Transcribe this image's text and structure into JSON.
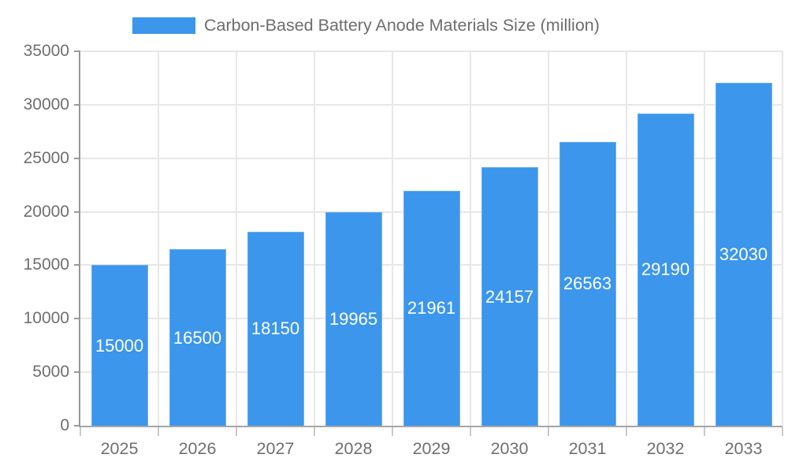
{
  "legend": {
    "label": "Carbon-Based Battery Anode Materials Size (million)"
  },
  "chart_data": {
    "type": "bar",
    "title": "Carbon-Based Battery Anode Materials Size (million)",
    "categories": [
      "2025",
      "2026",
      "2027",
      "2028",
      "2029",
      "2030",
      "2031",
      "2032",
      "2033"
    ],
    "values": [
      15000,
      16500,
      18150,
      19965,
      21961,
      24157,
      26563,
      29190,
      32030
    ],
    "series": [
      {
        "name": "Carbon-Based Battery Anode Materials Size (million)",
        "values": [
          15000,
          16500,
          18150,
          19965,
          21961,
          24157,
          26563,
          29190,
          32030
        ]
      }
    ],
    "xlabel": "",
    "ylabel": "",
    "ylim": [
      0,
      35000
    ],
    "yticks": [
      0,
      5000,
      10000,
      15000,
      20000,
      25000,
      30000,
      35000
    ],
    "grid": true,
    "legend_position": "top",
    "bar_labels_visible": true,
    "colors": {
      "bar_fill": "#3b96ec",
      "bar_border": "#6cb0f0",
      "bar_label_text": "#ffffff",
      "axis_line": "#969696",
      "gridline": "#e7e7e7",
      "tick_text": "#6f6f6f",
      "legend_text": "#6d6d6d"
    }
  }
}
